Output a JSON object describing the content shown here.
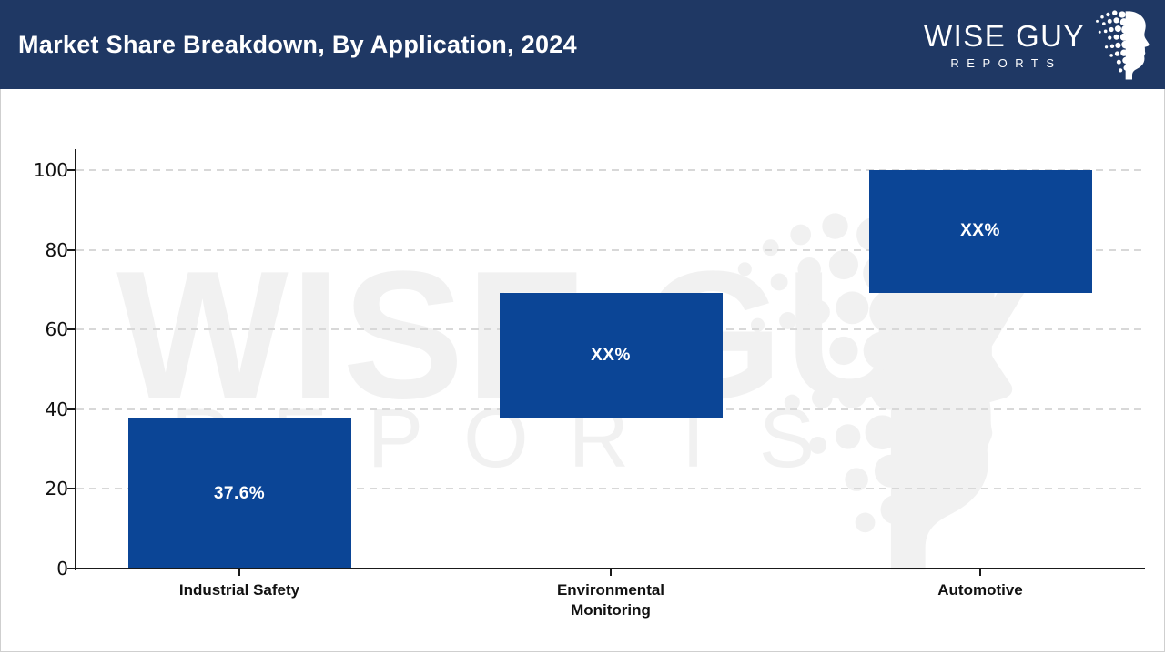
{
  "header": {
    "title": "Market Share Breakdown, By Application, 2024",
    "bg_color": "#1F3864",
    "logo": {
      "line1": "WISE GUY",
      "line2": "REPORTS"
    }
  },
  "watermark": {
    "line1": "WISE GUY",
    "line2": "REPORTS"
  },
  "colors": {
    "header_bg": "#1F3864",
    "bar_blue": "#0B4596",
    "grid_gray": "#D8D8D8",
    "axis_black": "#1A1A1A",
    "watermark_gray": "#F1F1F1",
    "bar_label_white": "#FFFFFF"
  },
  "chart_data": {
    "type": "bar",
    "variant": "stepped-breakdown-floating-bars",
    "title": "Market Share Breakdown, By Application, 2024",
    "categories": [
      "Industrial Safety",
      "Environmental Monitoring",
      "Automotive"
    ],
    "tick_label_lines": [
      [
        "Industrial Safety"
      ],
      [
        "Environmental",
        "Monitoring"
      ],
      [
        "Automotive"
      ]
    ],
    "series": [
      {
        "name": "Industrial Safety",
        "start": 0,
        "end": 37.6,
        "label": "37.6%"
      },
      {
        "name": "Environmental Monitoring",
        "start": 37.6,
        "end": 69.2,
        "label": "XX%"
      },
      {
        "name": "Automotive",
        "start": 69.2,
        "end": 100,
        "label": "XX%"
      }
    ],
    "yticks": [
      0,
      20,
      40,
      60,
      80,
      100
    ],
    "ylim": [
      0,
      105
    ],
    "grid": "horizontal-dashed",
    "legend": "none",
    "bar_color": "#0B4596",
    "label_color": "#FFFFFF"
  }
}
